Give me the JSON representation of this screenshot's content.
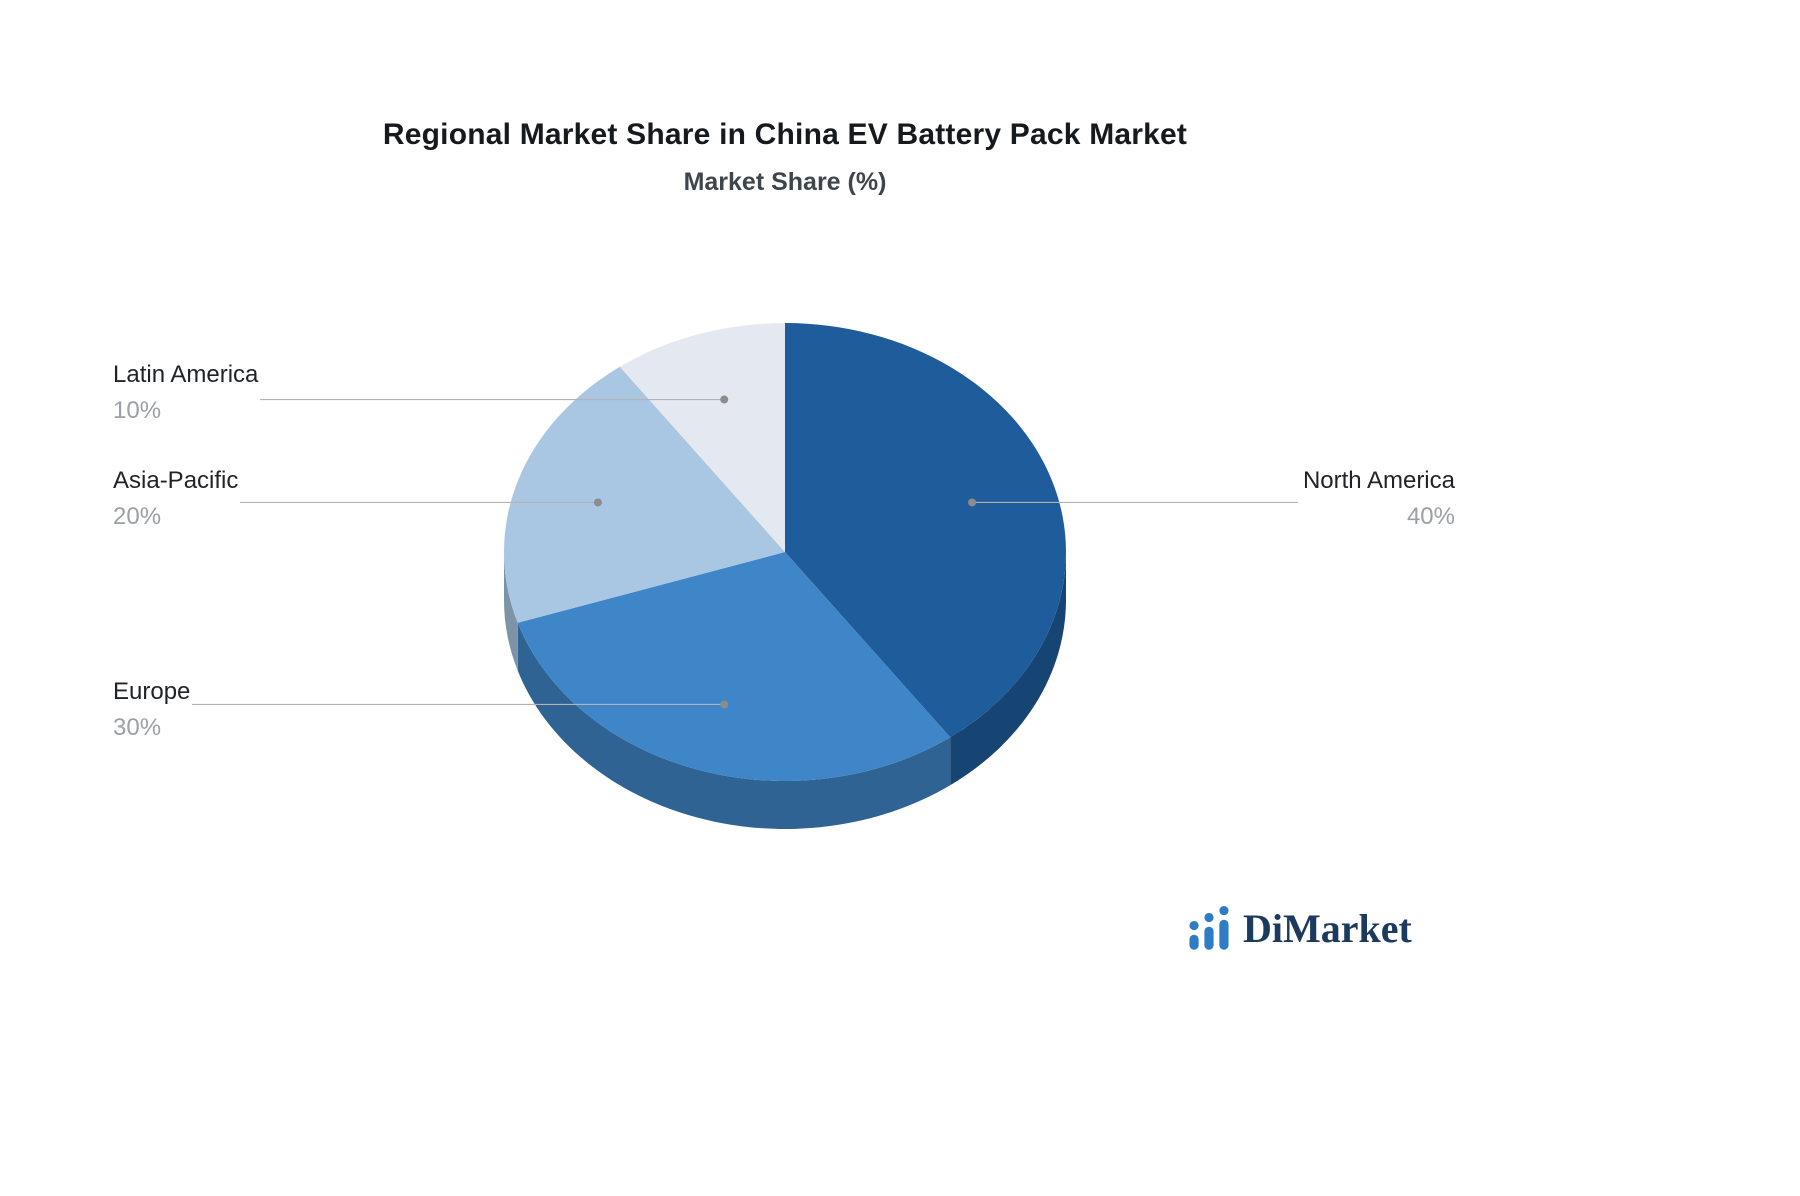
{
  "chart_data": {
    "type": "pie",
    "title": "Regional Market Share in China EV Battery Pack Market",
    "subtitle": "Market Share (%)",
    "units": "%",
    "total": 100,
    "start_angle_deg": 0,
    "direction": "clockwise",
    "effect": "3d",
    "legend_position": "callout-labels",
    "slices": [
      {
        "label": "North America",
        "value": 40,
        "display": "40%",
        "color": "#1E5C9B"
      },
      {
        "label": "Europe",
        "value": 30,
        "display": "30%",
        "color": "#3E86C7"
      },
      {
        "label": "Asia-Pacific",
        "value": 20,
        "display": "20%",
        "color": "#A9C6E2"
      },
      {
        "label": "Latin America",
        "value": 10,
        "display": "10%",
        "color": "#E4E9F1"
      }
    ]
  },
  "branding": {
    "logo_text": "DiMarket",
    "logo_color": "#1C3A5E",
    "icon_color": "#2E7CC4"
  }
}
